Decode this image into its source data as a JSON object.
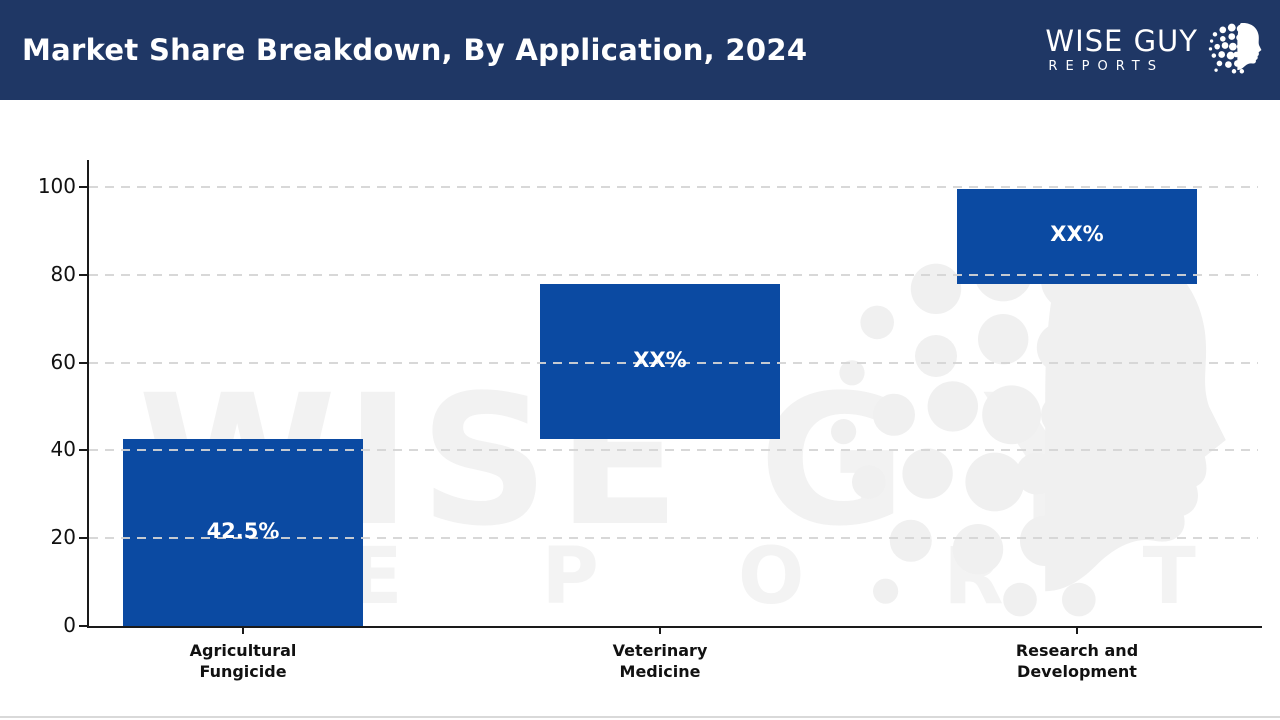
{
  "header": {
    "title": "Market Share Breakdown, By Application, 2024",
    "brand": {
      "name": "WISE GUY",
      "subtitle": "REPORTS"
    }
  },
  "watermark": {
    "line1": "WISE G Y",
    "line2": "R E P O R T S"
  },
  "colors": {
    "header_bg": "#1F3765",
    "bar_blue": "#0B4AA2",
    "grid_gray": "#D9D9D9",
    "axis_black": "#1A1A1A",
    "bar_label_white": "#FFFFFF",
    "watermark_gray": "#F2F2F2"
  },
  "chart_data": {
    "type": "bar",
    "subtype": "floating-segment-waterfall",
    "title": "Market Share Breakdown, By Application, 2024",
    "categories": [
      "Agricultural Fungicide",
      "Veterinary Medicine",
      "Research and Development"
    ],
    "bars": [
      {
        "category_lines": [
          "Agricultural",
          "Fungicide"
        ],
        "start": 0,
        "end": 42.5,
        "label": "42.5%"
      },
      {
        "category_lines": [
          "Veterinary",
          "Medicine"
        ],
        "start": 42.5,
        "end": 78,
        "label": "XX%"
      },
      {
        "category_lines": [
          "Research and",
          "Development"
        ],
        "start": 78,
        "end": 99.5,
        "label": "XX%"
      }
    ],
    "ylim": [
      0,
      100
    ],
    "yticks": [
      0,
      20,
      40,
      60,
      80,
      100
    ],
    "xlabel": "",
    "ylabel": "",
    "grid": "horizontal-dashed",
    "legend": "none",
    "bar_color": "#0B4AA2"
  }
}
